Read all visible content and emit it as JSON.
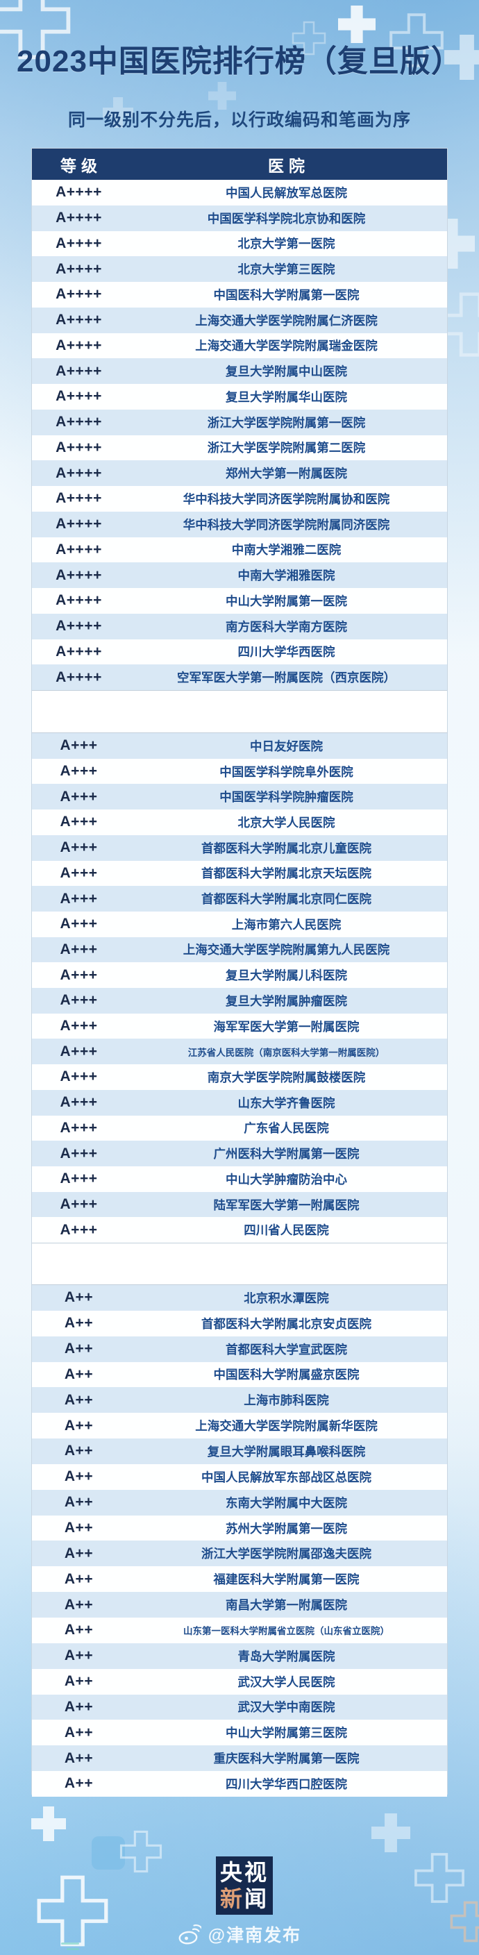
{
  "page": {
    "title": "2023中国医院排行榜（复旦版）",
    "subtitle": "同一级别不分先后，以行政编码和笔画为序"
  },
  "table": {
    "columns": {
      "grade": "等级",
      "hospital": "医院"
    },
    "sections": [
      {
        "grade": "A++++",
        "hospitals": [
          "中国人民解放军总医院",
          "中国医学科学院北京协和医院",
          "北京大学第一医院",
          "北京大学第三医院",
          "中国医科大学附属第一医院",
          "上海交通大学医学院附属仁济医院",
          "上海交通大学医学院附属瑞金医院",
          "复旦大学附属中山医院",
          "复旦大学附属华山医院",
          "浙江大学医学院附属第一医院",
          "浙江大学医学院附属第二医院",
          "郑州大学第一附属医院",
          "华中科技大学同济医学院附属协和医院",
          "华中科技大学同济医学院附属同济医院",
          "中南大学湘雅二医院",
          "中南大学湘雅医院",
          "中山大学附属第一医院",
          "南方医科大学南方医院",
          "四川大学华西医院",
          "空军军医大学第一附属医院（西京医院）"
        ]
      },
      {
        "grade": "A+++",
        "hospitals": [
          "中日友好医院",
          "中国医学科学院阜外医院",
          "中国医学科学院肿瘤医院",
          "北京大学人民医院",
          "首都医科大学附属北京儿童医院",
          "首都医科大学附属北京天坛医院",
          "首都医科大学附属北京同仁医院",
          "上海市第六人民医院",
          "上海交通大学医学院附属第九人民医院",
          "复旦大学附属儿科医院",
          "复旦大学附属肿瘤医院",
          "海军军医大学第一附属医院",
          "江苏省人民医院（南京医科大学第一附属医院）",
          "南京大学医学院附属鼓楼医院",
          "山东大学齐鲁医院",
          "广东省人民医院",
          "广州医科大学附属第一医院",
          "中山大学肿瘤防治中心",
          "陆军军医大学第一附属医院",
          "四川省人民医院"
        ]
      },
      {
        "grade": "A++",
        "hospitals": [
          "北京积水潭医院",
          "首都医科大学附属北京安贞医院",
          "首都医科大学宣武医院",
          "中国医科大学附属盛京医院",
          "上海市肺科医院",
          "上海交通大学医学院附属新华医院",
          "复旦大学附属眼耳鼻喉科医院",
          "中国人民解放军东部战区总医院",
          "东南大学附属中大医院",
          "苏州大学附属第一医院",
          "浙江大学医学院附属邵逸夫医院",
          "福建医科大学附属第一医院",
          "南昌大学第一附属医院",
          "山东第一医科大学附属省立医院（山东省立医院）",
          "青岛大学附属医院",
          "武汉大学人民医院",
          "武汉大学中南医院",
          "中山大学附属第三医院",
          "重庆医科大学附属第一医院",
          "四川大学华西口腔医院"
        ]
      }
    ]
  },
  "footer": {
    "logo_line1": "央视",
    "logo_line2_char1": "新",
    "logo_line2_char2": "闻",
    "watermark": "@津南发布"
  },
  "colors": {
    "header_bg": "#1e3d6e",
    "stripe_blue": "#d9e8f5",
    "title_text": "#1d3f72",
    "hospital_text": "#1e4c8c",
    "logo_bg": "#15294e",
    "logo_accent": "#df9f76"
  }
}
